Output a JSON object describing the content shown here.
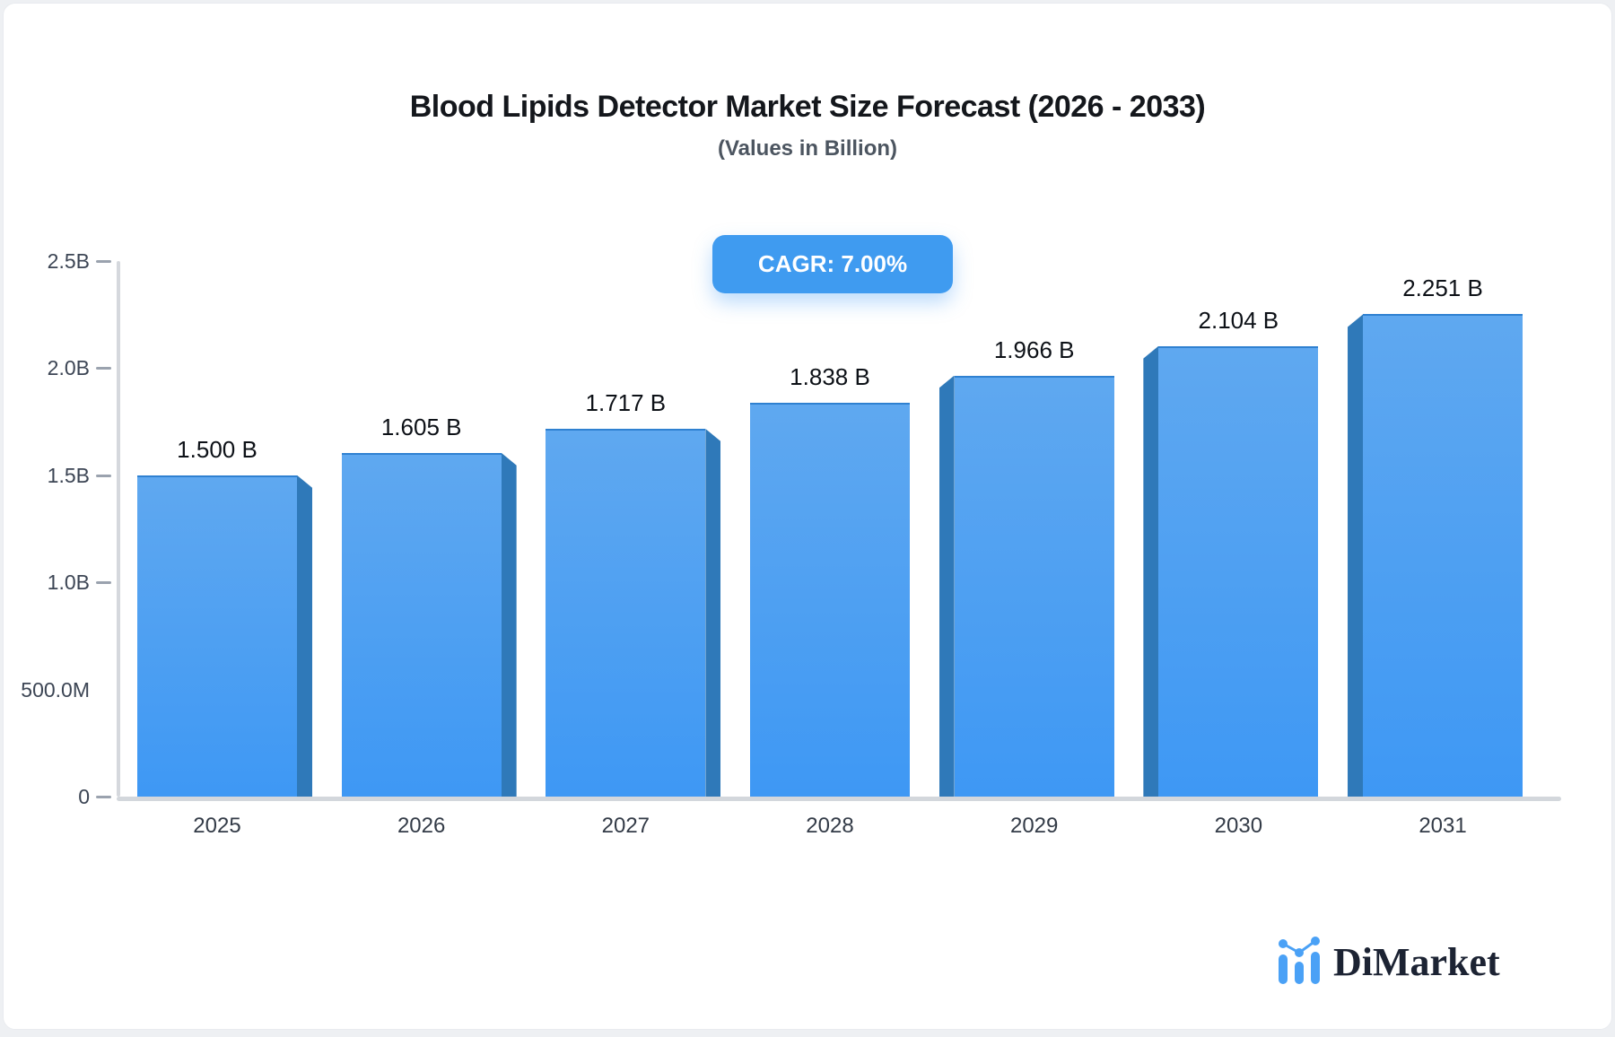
{
  "title": "Blood Lipids Detector Market Size Forecast (2026 - 2033)",
  "subtitle": "(Values in Billion)",
  "badge": {
    "label": "CAGR: 7.00%",
    "bg": "#3f9bf0"
  },
  "chart_data": {
    "type": "bar",
    "categories": [
      "2025",
      "2026",
      "2027",
      "2028",
      "2029",
      "2030",
      "2031"
    ],
    "values": [
      1.5,
      1.605,
      1.717,
      1.838,
      1.966,
      2.104,
      2.251
    ],
    "value_labels": [
      "1.500 B",
      "1.605 B",
      "1.717 B",
      "1.838 B",
      "1.966 B",
      "2.104 B",
      "2.251 B"
    ],
    "title": "Blood Lipids Detector Market Size Forecast (2026 - 2033)",
    "xlabel": "",
    "ylabel": "",
    "ylim": [
      0,
      2.5
    ],
    "y_ticks": [
      {
        "value": 0.0,
        "label": "0",
        "dash": true
      },
      {
        "value": 0.5,
        "label": "500.0M",
        "dash": false
      },
      {
        "value": 1.0,
        "label": "1.0B",
        "dash": true
      },
      {
        "value": 1.5,
        "label": "1.5B",
        "dash": true
      },
      {
        "value": 2.0,
        "label": "2.0B",
        "dash": true
      },
      {
        "value": 2.5,
        "label": "2.5B",
        "dash": true
      }
    ],
    "grid": false,
    "legend": false,
    "bar_style": "3d-pseudo"
  },
  "colors": {
    "bar_top": "#5fa8f0",
    "bar_bottom": "#3e98f4",
    "bar_side": "#2f79b9",
    "axis_line": "#d5d8dd",
    "tick_dash": "#9aa2ae",
    "badge_bg": "#3f9bf0"
  },
  "logo": {
    "text": "DiMarket",
    "icon": "bar-chart-logo-icon"
  }
}
